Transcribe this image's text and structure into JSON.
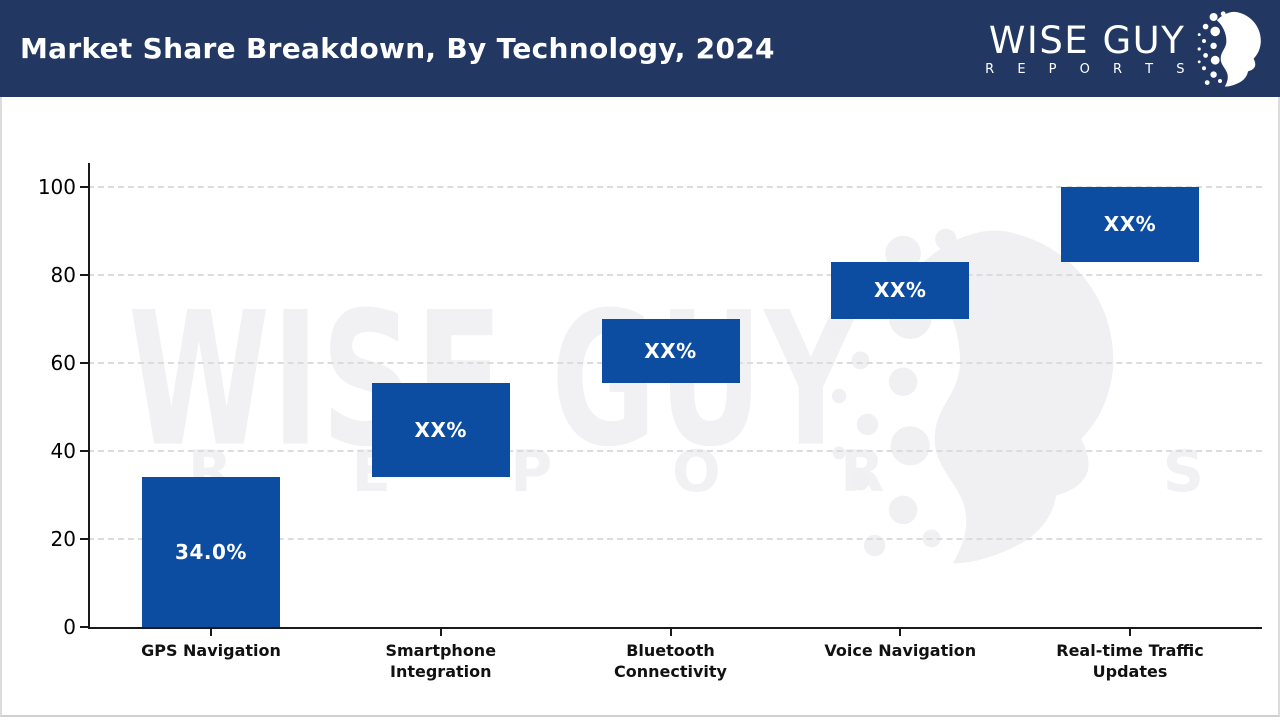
{
  "header": {
    "title": "Market Share Breakdown, By Technology, 2024",
    "logo": {
      "wordmark": "WISE GUY",
      "subtext": "R E P O R T S"
    }
  },
  "watermark": {
    "line1": "WISE GUY",
    "line2": "R E P O R T S"
  },
  "chart_data": {
    "type": "bar",
    "subtype": "waterfall",
    "title": "Market Share Breakdown, By Technology, 2024",
    "categories": [
      "GPS Navigation",
      "Smartphone\nIntegration",
      "Bluetooth\nConnectivity",
      "Voice Navigation",
      "Real-time Traffic\nUpdates"
    ],
    "segments": [
      {
        "category": "GPS Navigation",
        "start": 0,
        "end": 34,
        "label": "34.0%"
      },
      {
        "category": "Smartphone Integration",
        "start": 34,
        "end": 55.5,
        "label": "XX%"
      },
      {
        "category": "Bluetooth Connectivity",
        "start": 55.5,
        "end": 70,
        "label": "XX%"
      },
      {
        "category": "Voice Navigation",
        "start": 70,
        "end": 83,
        "label": "XX%"
      },
      {
        "category": "Real-time Traffic Updates",
        "start": 83,
        "end": 100,
        "label": "XX%"
      }
    ],
    "xlabel": "",
    "ylabel": "",
    "ylim": [
      0,
      100
    ],
    "yticks": [
      0,
      20,
      40,
      60,
      80,
      100
    ],
    "grid": "horizontal-dashed",
    "legend": "none",
    "bar_color": "#0C4DA2",
    "header_color": "#223862",
    "value_label_color": "#ffffff"
  }
}
